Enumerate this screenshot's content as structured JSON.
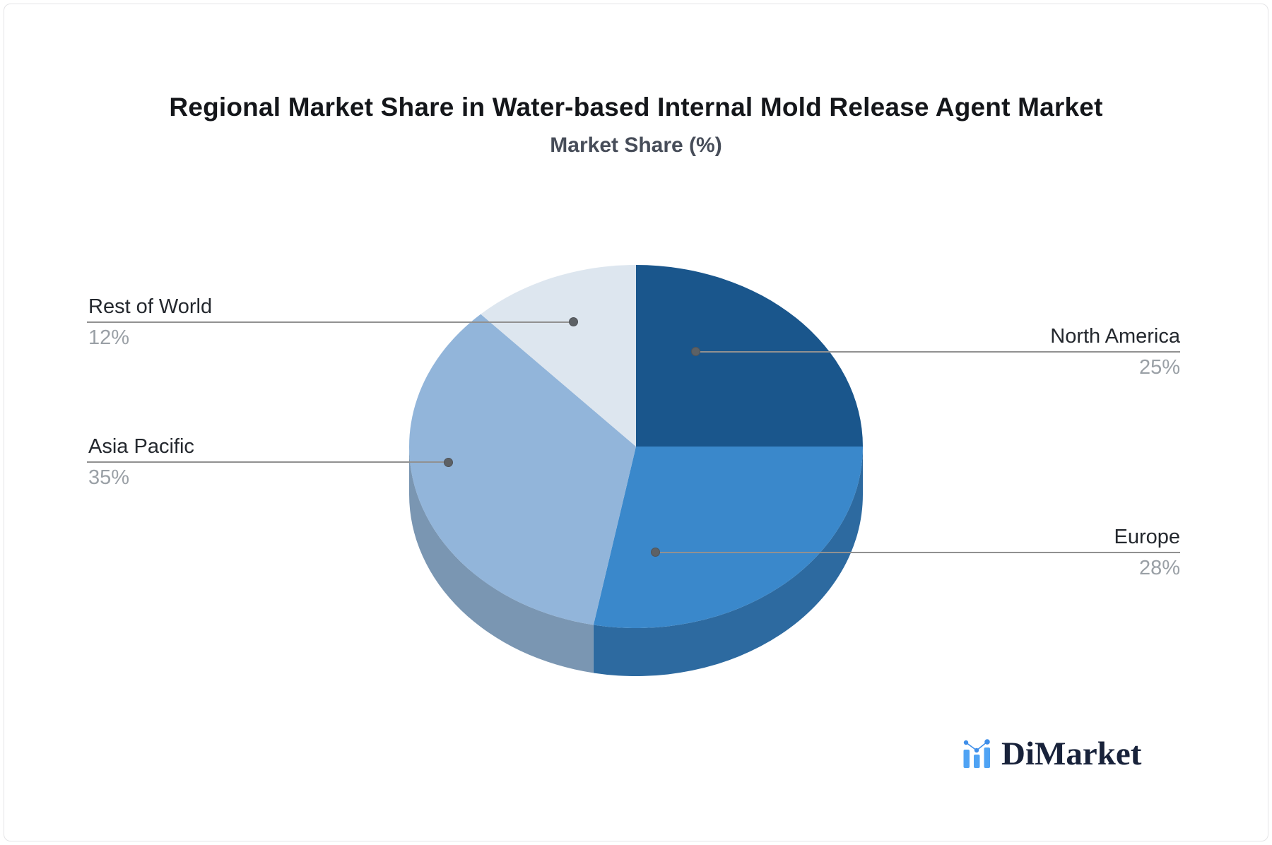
{
  "header": {
    "title": "Regional Market Share in Water-based Internal Mold Release Agent Market",
    "subtitle": "Market Share (%)"
  },
  "chart_data": {
    "type": "pie",
    "style": "3d-pie",
    "title": "Regional Market Share in Water-based Internal Mold Release Agent Market",
    "subtitle": "Market Share (%)",
    "unit": "%",
    "direction": "clockwise",
    "start_angle_deg": 0,
    "legend_position": "callout-labels",
    "slices": [
      {
        "label": "North America",
        "value": 25,
        "color": "#1A568C"
      },
      {
        "label": "Europe",
        "value": 28,
        "color": "#3A88CB",
        "side_color": "#2D6AA0"
      },
      {
        "label": "Asia Pacific",
        "value": 35,
        "color": "#92B5DA",
        "side_color": "#7A96B2"
      },
      {
        "label": "Rest of World",
        "value": 12,
        "color": "#DDE6EF"
      }
    ]
  },
  "callouts": {
    "rest_of_world": {
      "label": "Rest of World",
      "value": "12%"
    },
    "asia_pacific": {
      "label": "Asia Pacific",
      "value": "35%"
    },
    "north_america": {
      "label": "North America",
      "value": "25%"
    },
    "europe": {
      "label": "Europe",
      "value": "28%"
    }
  },
  "style": {
    "callout_line_color": "#919191",
    "callout_dot_color": "#5d6165",
    "label_text_color": "#24282e",
    "value_text_color": "#9aa0a6"
  },
  "branding": {
    "logo_text": "DiMarket",
    "logo_icon": "bar-line-chart-icon",
    "icon_color": "#4FA3F4",
    "icon_accent_color": "#3E8EE9",
    "text_color": "#18223a"
  }
}
